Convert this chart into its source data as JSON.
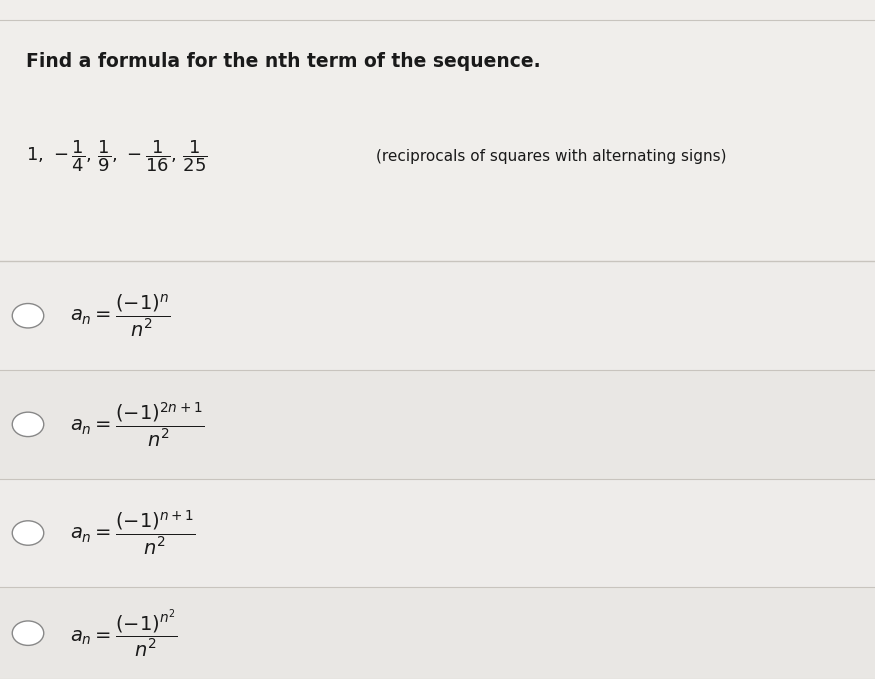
{
  "title": "Find a formula for the nth term of the sequence.",
  "background_color": "#e8e6e3",
  "section_bg": "#f0eeeb",
  "option_bg": "#ebe9e6",
  "line_color": "#c8c4be",
  "text_color": "#1a1a1a",
  "radio_color": "#ffffff",
  "radio_edge": "#888888",
  "fig_width": 8.75,
  "fig_height": 6.79,
  "dpi": 100,
  "title_fontsize": 13.5,
  "seq_fontsize": 13,
  "formula_fontsize": 14,
  "small_fontsize": 10,
  "option_tops": [
    0.615,
    0.455,
    0.295,
    0.135
  ],
  "option_bottoms": [
    0.455,
    0.295,
    0.135,
    0.0
  ],
  "options_latex": [
    "(-1)^n",
    "(-1)^{2n+1}",
    "(-1)^{n+1}",
    "(-1)^{n^2}"
  ]
}
